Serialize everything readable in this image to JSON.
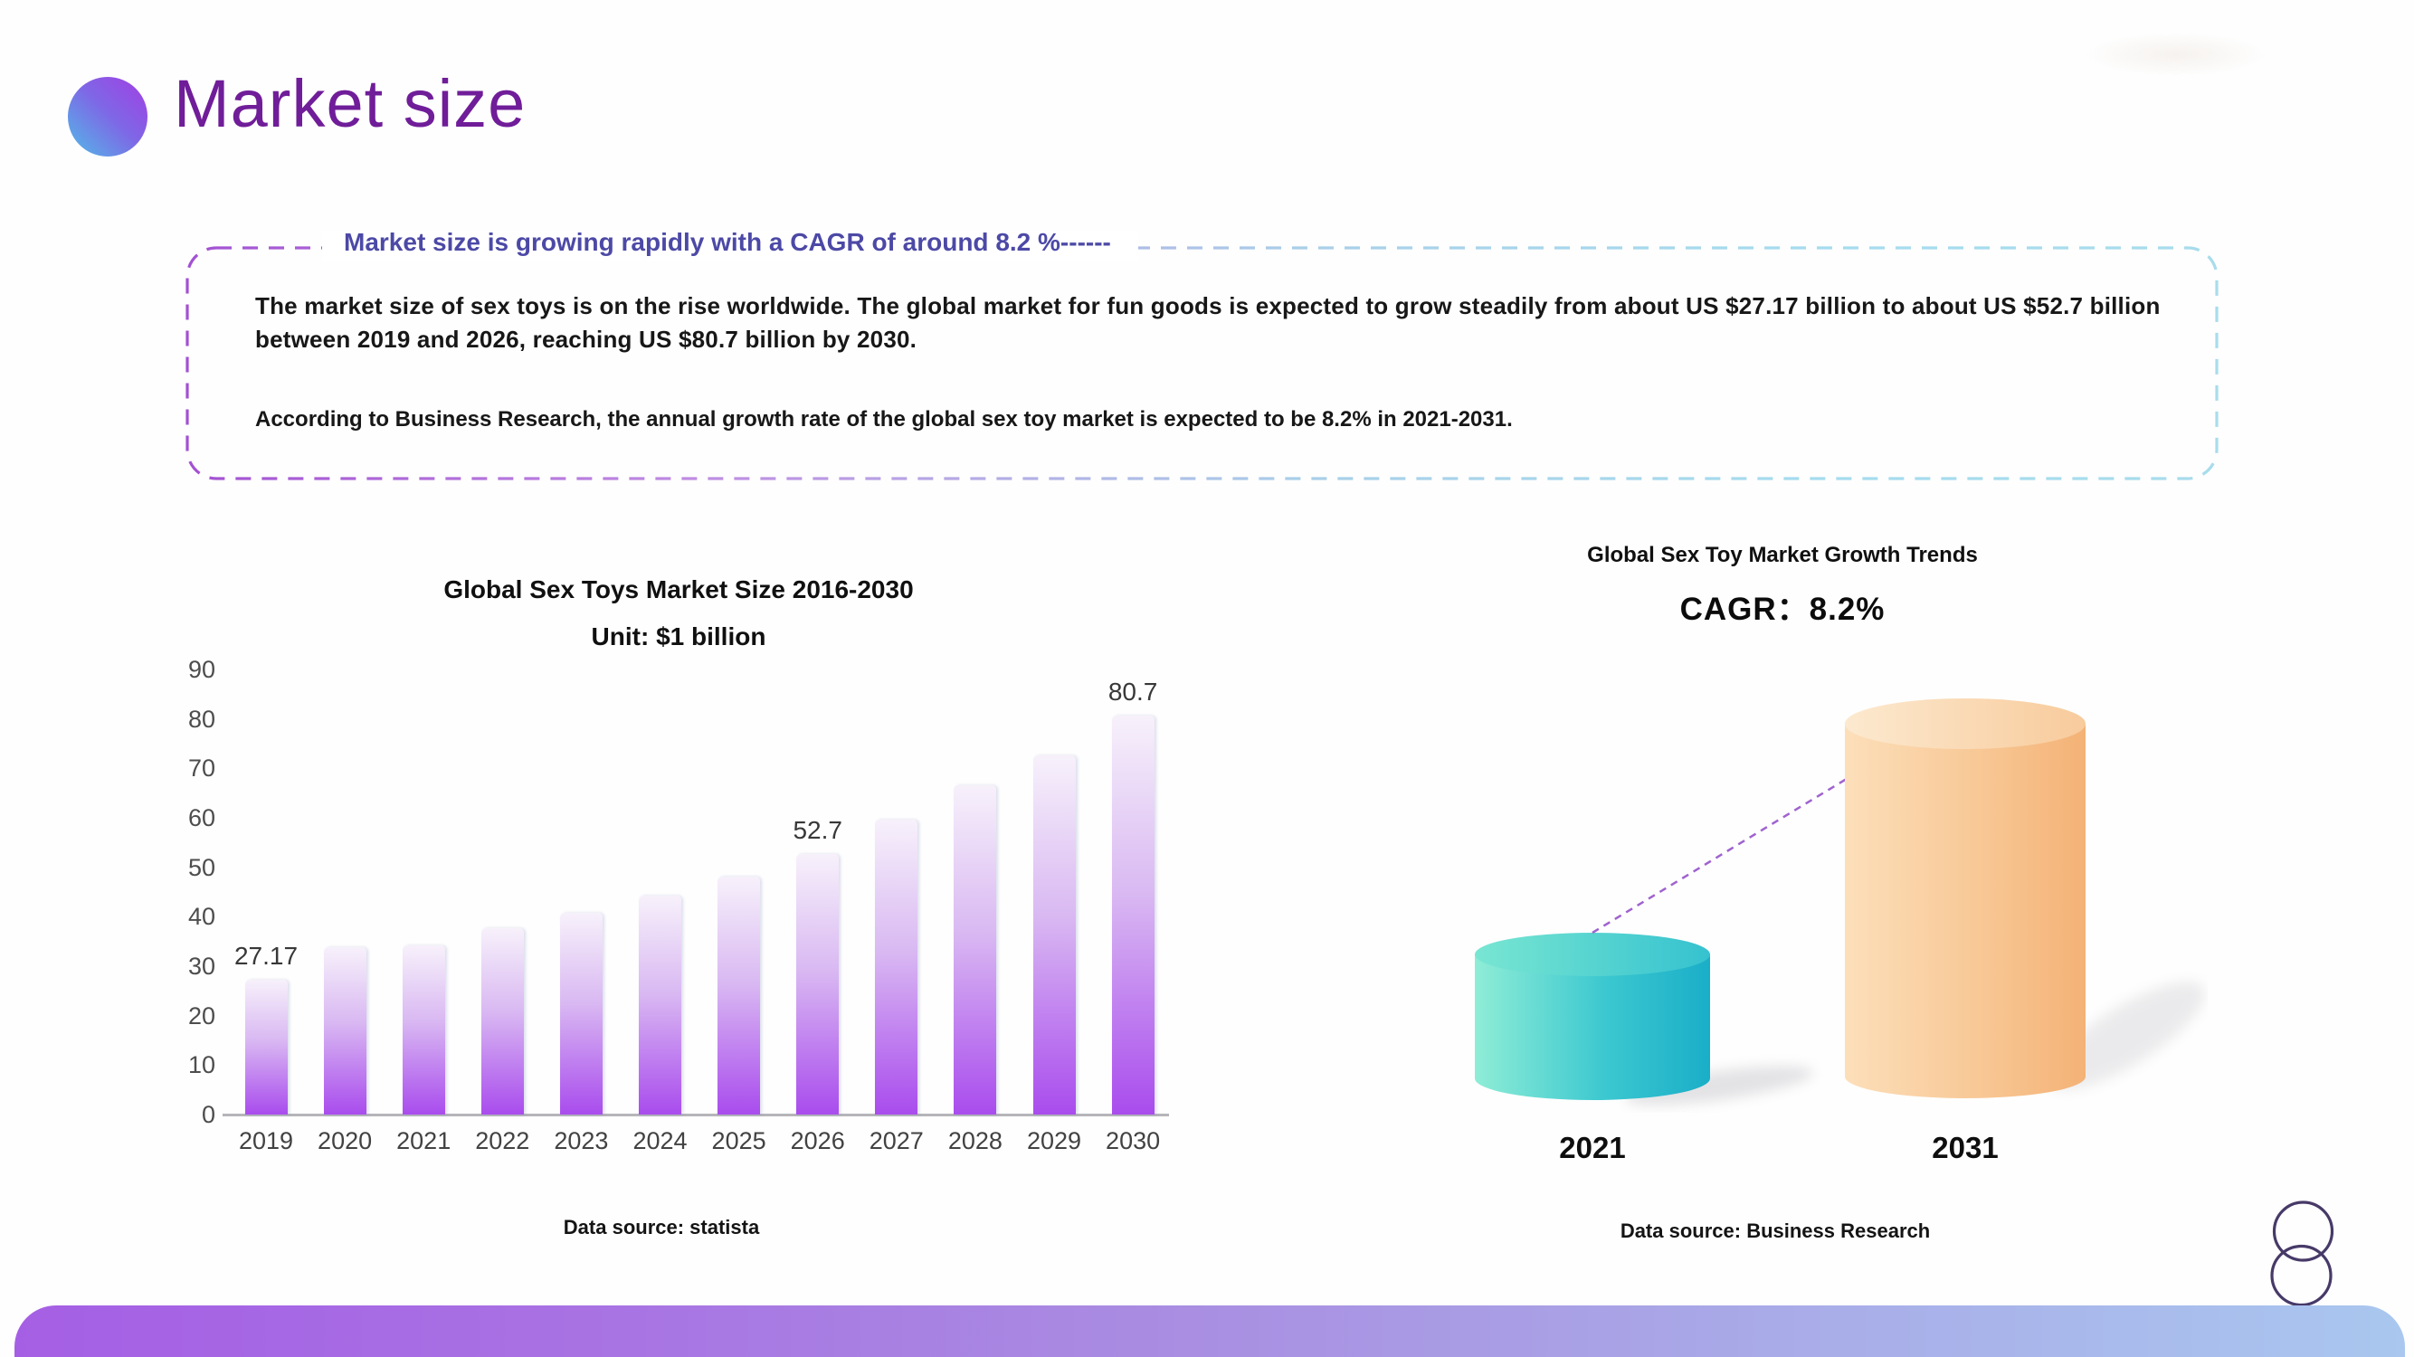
{
  "slide": {
    "title": "Market size",
    "page_number": "8"
  },
  "callout": {
    "header": "Market size is growing rapidly with a CAGR of around 8.2 %------",
    "paragraph1": "The market size of sex toys is on the rise worldwide. The global market for fun goods is expected to grow steadily from about US $27.17 billion to about US $52.7 billion between 2019 and 2026, reaching US $80.7 billion by 2030.",
    "paragraph2": "According to Business Research, the annual growth rate of the global sex toy market is expected to be 8.2% in 2021-2031."
  },
  "chart_data": [
    {
      "type": "bar",
      "title": "Global Sex Toys Market Size 2016-2030",
      "subtitle": "Unit: $1 billion",
      "categories": [
        "2019",
        "2020",
        "2021",
        "2022",
        "2023",
        "2024",
        "2025",
        "2026",
        "2027",
        "2028",
        "2029",
        "2030"
      ],
      "values": [
        27.17,
        33.9,
        34.2,
        37.6,
        40.8,
        44.2,
        48.2,
        52.7,
        59.6,
        66.5,
        72.6,
        80.7
      ],
      "data_labels": {
        "2019": "27.17",
        "2026": "52.7",
        "2030": "80.7"
      },
      "ylim": [
        0,
        90
      ],
      "yticks": [
        0,
        10,
        20,
        30,
        40,
        50,
        60,
        70,
        80,
        90
      ],
      "grid": false,
      "legend": false,
      "bar_gradient_top": "#f7f1fb",
      "bar_gradient_mid": "#d9b8f2",
      "bar_gradient_bottom": "#a94ced",
      "source": "Data source: statista"
    },
    {
      "type": "bar",
      "variant": "3d-cylinder",
      "title": "Global Sex Toy Market Growth Trends",
      "cagr_label": "CAGR：8.2%",
      "categories": [
        "2021",
        "2031"
      ],
      "relative_heights": [
        1,
        2.35
      ],
      "colors": [
        "#2fc0cf",
        "#f9c08a"
      ],
      "connector_color": "#9f63cf",
      "source": "Data source: Business Research"
    }
  ]
}
